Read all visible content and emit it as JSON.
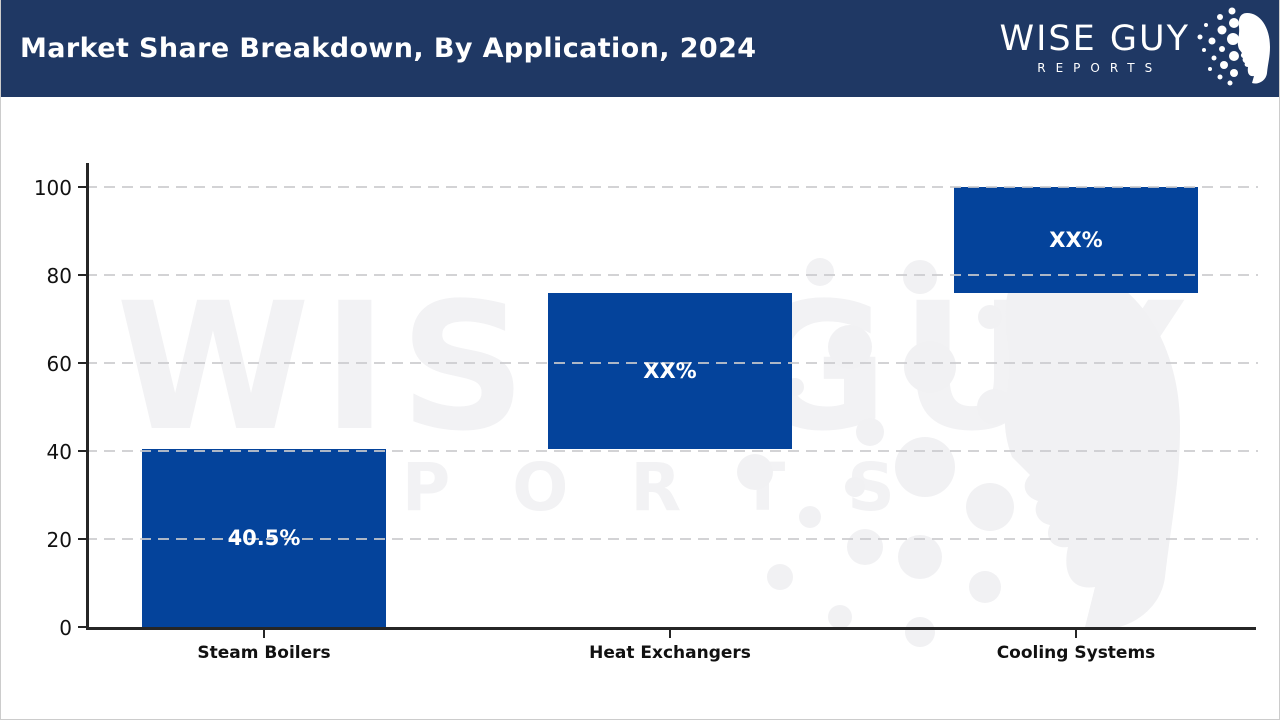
{
  "header": {
    "title": "Market Share Breakdown, By Application, 2024",
    "bg_color": "#1F3864",
    "logo": {
      "line1": "WISE GUY",
      "line2": "REPORTS",
      "icon": "dotted-face-profile"
    }
  },
  "watermark": {
    "line1": "WISE GUY",
    "line2": "REPORTS",
    "icon": "dotted-face-profile"
  },
  "chart_data": {
    "type": "bar",
    "subtype": "floating-waterfall",
    "title": "Market Share Breakdown, By Application, 2024",
    "categories": [
      "Steam Boilers",
      "Heat Exchangers",
      "Cooling Systems"
    ],
    "segments": [
      {
        "category": "Steam Boilers",
        "start": 0,
        "end": 40.5,
        "label": "40.5%"
      },
      {
        "category": "Heat Exchangers",
        "start": 40.5,
        "end": 76,
        "label": "XX%"
      },
      {
        "category": "Cooling Systems",
        "start": 76,
        "end": 100,
        "label": "XX%"
      }
    ],
    "yticks": [
      0,
      20,
      40,
      60,
      80,
      100
    ],
    "ylim": [
      0,
      105
    ],
    "xlabel": "",
    "ylabel": "",
    "grid": true,
    "grid_style": "dashed",
    "legend": false,
    "bar_color": "#04439B",
    "bar_label_color": "#ffffff",
    "axis_color": "#262626",
    "grid_color": "#d4d4d4"
  }
}
